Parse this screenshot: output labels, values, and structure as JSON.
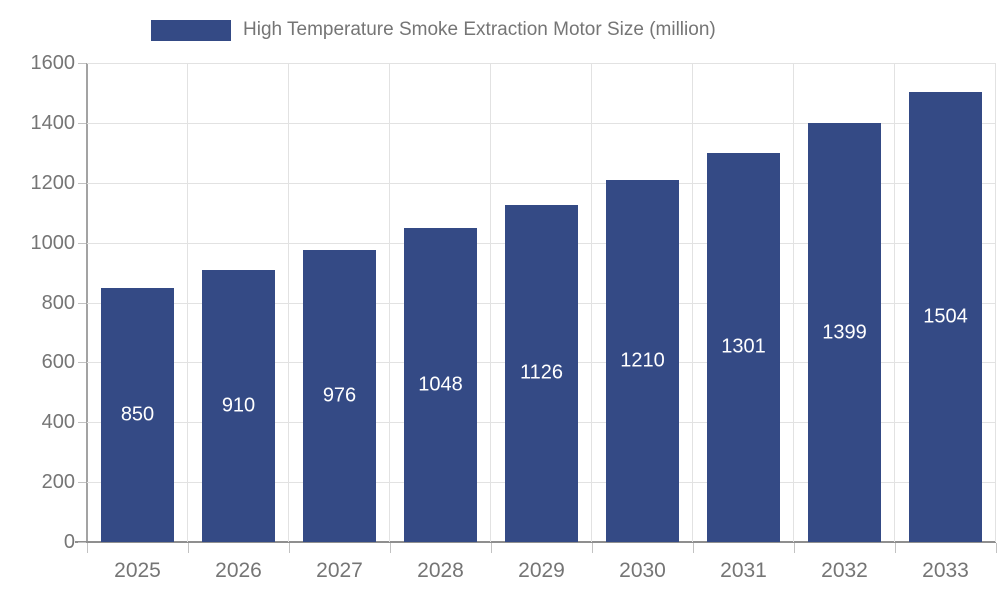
{
  "chart_data": {
    "type": "bar",
    "title": "High Temperature Smoke Extraction Motor Size (million)",
    "categories": [
      "2025",
      "2026",
      "2027",
      "2028",
      "2029",
      "2030",
      "2031",
      "2032",
      "2033"
    ],
    "values": [
      850,
      910,
      976,
      1048,
      1126,
      1210,
      1301,
      1399,
      1504
    ],
    "xlabel": "",
    "ylabel": "",
    "ylim": [
      0,
      1600
    ],
    "yticks": [
      0,
      200,
      400,
      600,
      800,
      1000,
      1200,
      1400,
      1600
    ],
    "grid": true,
    "legend_position": "top",
    "bar_color": "#344a85",
    "value_label_color": "#ffffff",
    "axis_text_color": "#757575",
    "gridline_color": "#e2e2e2"
  }
}
